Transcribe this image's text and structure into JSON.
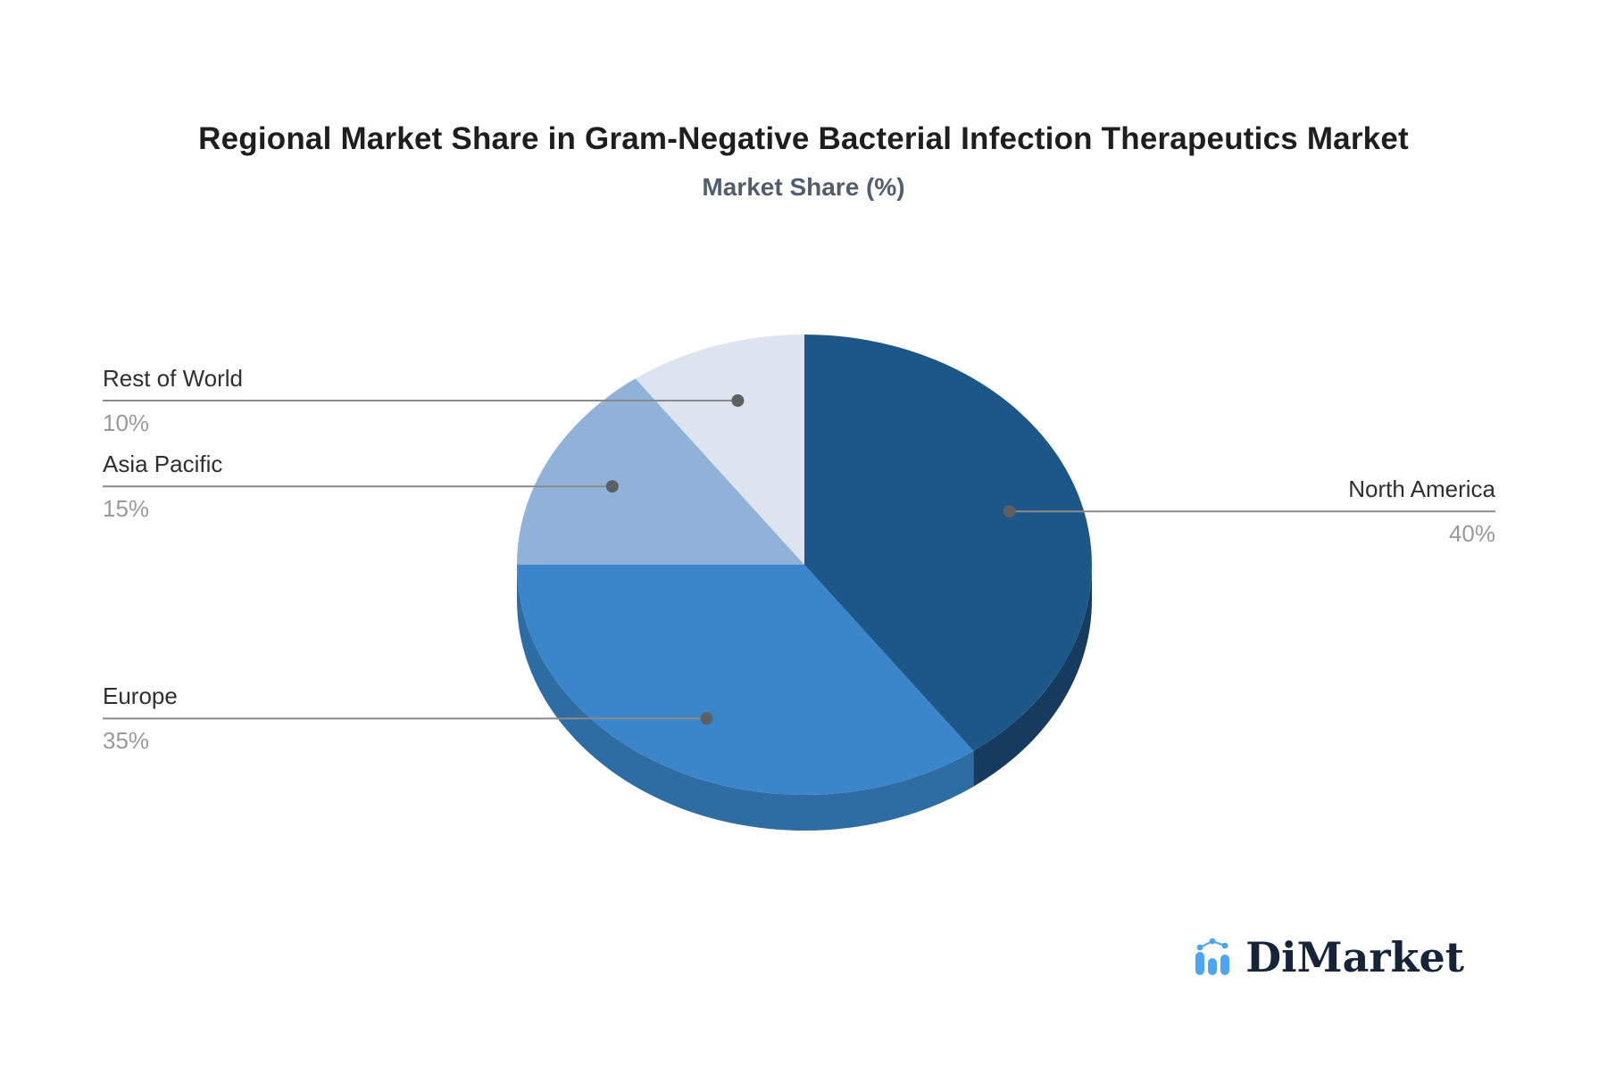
{
  "header": {
    "title": "Regional Market Share in Gram-Negative Bacterial Infection Therapeutics Market",
    "subtitle": "Market Share (%)",
    "title_color": "#1e1e1e",
    "subtitle_color": "#515e6b"
  },
  "chart_data": {
    "type": "pie",
    "title": "Regional Market Share in Gram-Negative Bacterial Infection Therapeutics Market",
    "subtitle": "Market Share (%)",
    "unit": "%",
    "effect": "3d",
    "start_angle_deg": 0,
    "direction": "clockwise",
    "categories": [
      "North America",
      "Europe",
      "Asia Pacific",
      "Rest of World"
    ],
    "values": [
      40,
      35,
      15,
      10
    ],
    "slices": [
      {
        "label": "North America",
        "value": 40,
        "pct_label": "40%",
        "color": "#1D5788",
        "side_color": "#173B5E",
        "label_side": "right"
      },
      {
        "label": "Europe",
        "value": 35,
        "pct_label": "35%",
        "color": "#3B86CA",
        "side_color": "#2E6CA4",
        "label_side": "left"
      },
      {
        "label": "Asia Pacific",
        "value": 15,
        "pct_label": "15%",
        "color": "#90B2D8",
        "side_color": "#7A9CC2",
        "label_side": "left"
      },
      {
        "label": "Rest of World",
        "value": 10,
        "pct_label": "10%",
        "color": "#DEE4EF",
        "side_color": "#C2CBDC",
        "label_side": "left"
      }
    ],
    "leader": {
      "line_color": "#8a8a8a",
      "dot_color": "#5c6063",
      "label_color": "#2f2f2f",
      "pct_color": "#9a9a9a"
    },
    "legend_position": "none",
    "grid": false
  },
  "logo": {
    "text": "DiMarket",
    "text_color": "#16243a",
    "icon": "bar-chart-trend-icon",
    "icon_color": "#4BA5F2"
  }
}
